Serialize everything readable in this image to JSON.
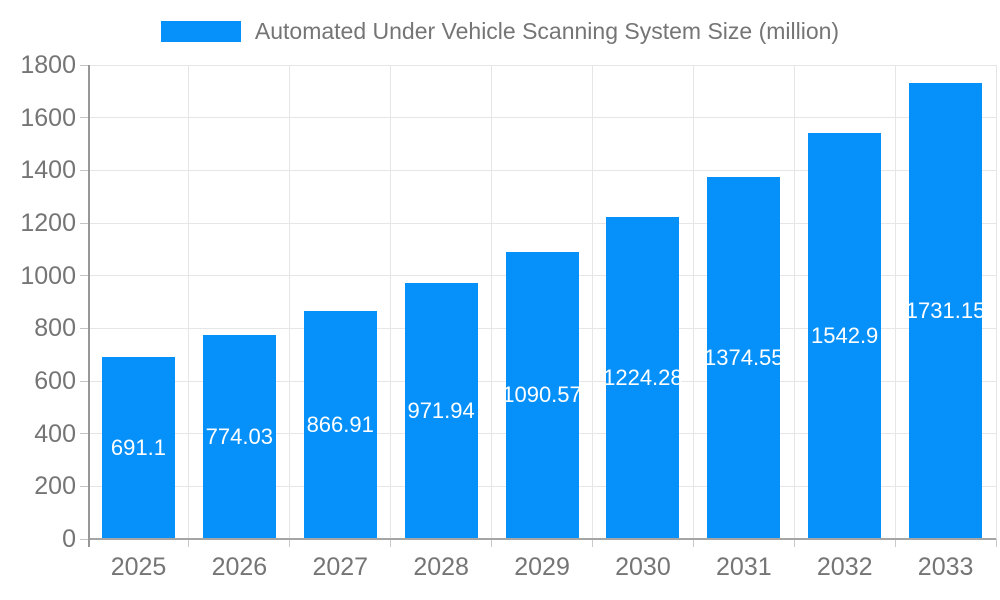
{
  "chart_data": {
    "type": "bar",
    "title": "Automated Under Vehicle Scanning System Size (million)",
    "categories": [
      "2025",
      "2026",
      "2027",
      "2028",
      "2029",
      "2030",
      "2031",
      "2032",
      "2033"
    ],
    "series": [
      {
        "name": "Automated Under Vehicle Scanning System Size (million)",
        "values": [
          691.1,
          774.03,
          866.91,
          971.94,
          1090.57,
          1224.28,
          1374.55,
          1542.9,
          1731.15
        ],
        "value_labels": [
          "691.1",
          "774.03",
          "866.91",
          "971.94",
          "1090.57",
          "1224.28",
          "1374.55",
          "1542.9",
          "1731.15"
        ]
      }
    ],
    "xlabel": "",
    "ylabel": "",
    "ylim": [
      0,
      1800
    ],
    "yticks": [
      0,
      200,
      400,
      600,
      800,
      1000,
      1200,
      1400,
      1600,
      1800
    ],
    "grid": true,
    "legend_position": "top",
    "colors": {
      "bar": "#0690fa",
      "bar_value_text": "#ffffff",
      "axis_text": "#757575",
      "legend_text": "#757575",
      "gridline": "#e6e6e6",
      "axis_line": "#9b9b9b"
    }
  }
}
